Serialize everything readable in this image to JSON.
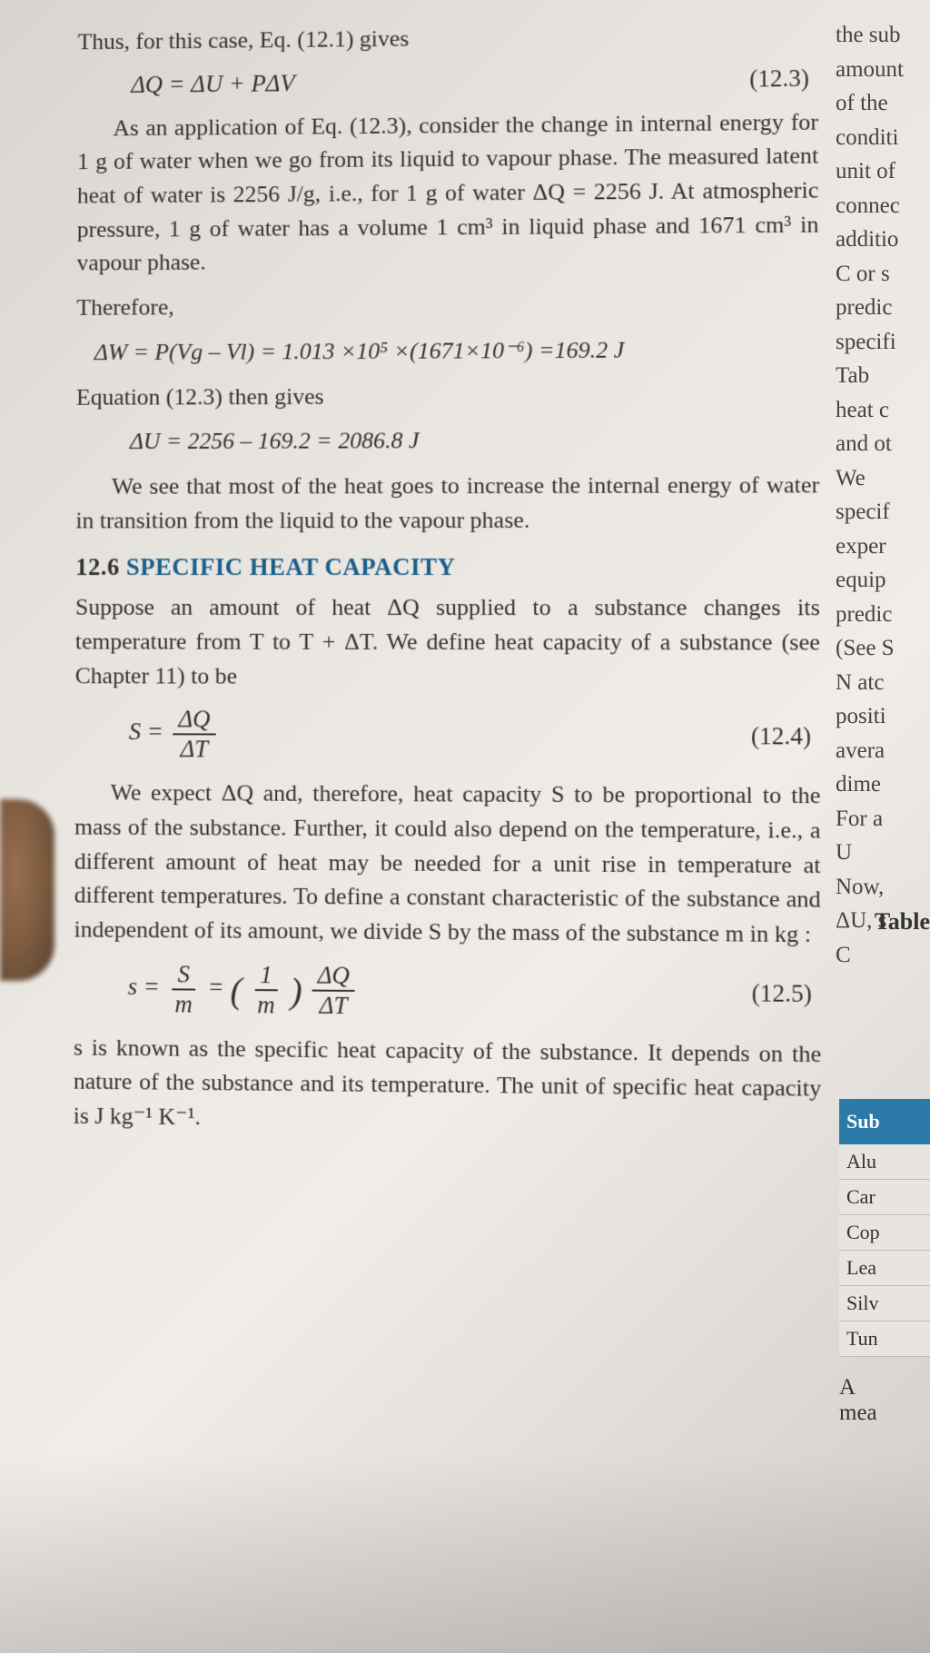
{
  "intro_line": "Thus, for this case, Eq. (12.1) gives",
  "eq1": {
    "expr": "ΔQ = ΔU + PΔV",
    "num": "(12.3)"
  },
  "para1": "As an application of Eq. (12.3), consider the change in internal energy for 1 g of water when we go from its liquid to vapour phase. The measured latent heat of water is 2256 J/g, i.e., for 1 g of water ΔQ = 2256 J. At atmospheric pressure, 1 g of water has a volume 1 cm³ in liquid phase and 1671 cm³ in vapour phase.",
  "therefore": "Therefore,",
  "eq2": "ΔW = P(Vg – Vl) = 1.013 ×10⁵ ×(1671×10⁻⁶) =169.2 J",
  "eq3_intro": "Equation (12.3) then gives",
  "eq3": "ΔU = 2256 – 169.2 = 2086.8 J",
  "para2": "We see that most of the heat goes to increase the internal energy of water in transition from the liquid to the vapour phase.",
  "section": {
    "num": "12.6",
    "title": "SPECIFIC HEAT CAPACITY"
  },
  "para3": "Suppose an amount of heat ΔQ supplied to a substance changes its temperature from T to T + ΔT. We define heat capacity of a substance (see Chapter 11) to be",
  "eq4": {
    "lhs": "S =",
    "frac_top": "ΔQ",
    "frac_bot": "ΔT",
    "num": "(12.4)"
  },
  "para4": "We expect ΔQ and, therefore, heat capacity S to be proportional to the mass of the substance. Further, it could also depend on the temperature, i.e., a different amount of heat may be needed for a unit rise in temperature at different temperatures. To define a constant characteristic of the substance and independent of its amount, we divide S by the mass of the substance m in kg :",
  "eq5": {
    "lhs": "s =",
    "f1_top": "S",
    "f1_bot": "m",
    "mid": "=",
    "f2_top": "1",
    "f2_bot": "m",
    "f3_top": "ΔQ",
    "f3_bot": "ΔT",
    "num": "(12.5)"
  },
  "para5": "s is known as the specific heat capacity of the substance. It depends on the nature of the substance and its temperature. The unit of specific heat capacity is J kg⁻¹ K⁻¹.",
  "right_fragments": [
    "the sub",
    "amount",
    "of the",
    "conditi",
    "unit of",
    "connec",
    "additio",
    "C or s",
    "predic",
    "specifi",
    "Tab",
    "heat c",
    "and ot",
    "We",
    "specif",
    "exper",
    "equip",
    "predic",
    "(See S",
    "N atc",
    "positi",
    "avera",
    "dime",
    "For a",
    "U",
    "Now,",
    "ΔU, s",
    "",
    "C"
  ],
  "table_label": "Table",
  "table_frag": {
    "head": "Sub",
    "rows": [
      "Alu",
      "Car",
      "Cop",
      "Lea",
      "Silv",
      "Tun"
    ],
    "below": [
      "A",
      "mea"
    ]
  }
}
